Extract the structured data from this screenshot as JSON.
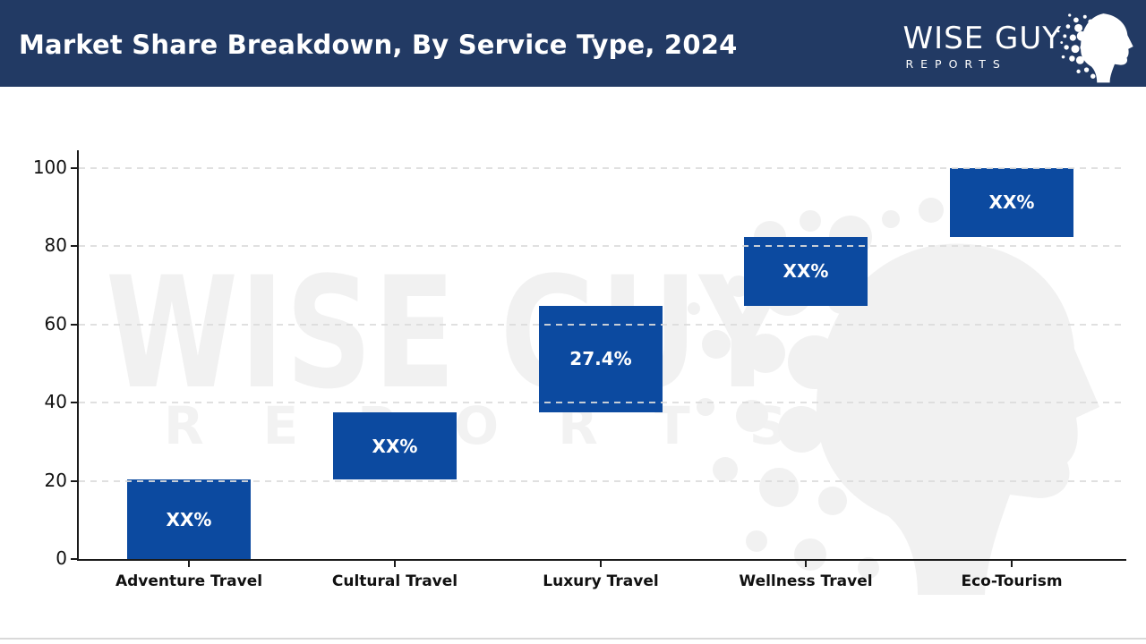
{
  "header": {
    "title": "Market Share Breakdown, By Service Type, 2024",
    "logo": {
      "primary": "WISE GUY",
      "secondary": "REPORTS"
    }
  },
  "watermark": {
    "primary": "WISE GUY",
    "secondary": "REPORTS"
  },
  "colors": {
    "header_bg": "#223a64",
    "bar": "#0c4aa0",
    "grid": "#dcdcdc",
    "axis": "#1a1a1a"
  },
  "chart_data": {
    "type": "bar",
    "subtype": "waterfall-floating-segments",
    "title": "Market Share Breakdown, By Service Type, 2024",
    "categories": [
      "Adventure Travel",
      "Cultural Travel",
      "Luxury Travel",
      "Wellness Travel",
      "Eco-Tourism"
    ],
    "segments": [
      {
        "category": "Adventure Travel",
        "start": 0,
        "end": 20.3,
        "value": 20.3,
        "label": "XX%"
      },
      {
        "category": "Cultural Travel",
        "start": 20.3,
        "end": 37.4,
        "value": 17.1,
        "label": "XX%"
      },
      {
        "category": "Luxury Travel",
        "start": 37.4,
        "end": 64.8,
        "value": 27.4,
        "label": "27.4%"
      },
      {
        "category": "Wellness Travel",
        "start": 64.8,
        "end": 82.4,
        "value": 17.6,
        "label": "XX%"
      },
      {
        "category": "Eco-Tourism",
        "start": 82.4,
        "end": 100,
        "value": 17.6,
        "label": "XX%"
      }
    ],
    "xlabel": "",
    "ylabel": "",
    "ylim": [
      0,
      100
    ],
    "yticks": [
      0,
      20,
      40,
      60,
      80,
      100
    ],
    "grid": "horizontal-dashed",
    "legend": "none",
    "bar_color": "#0c4aa0"
  }
}
